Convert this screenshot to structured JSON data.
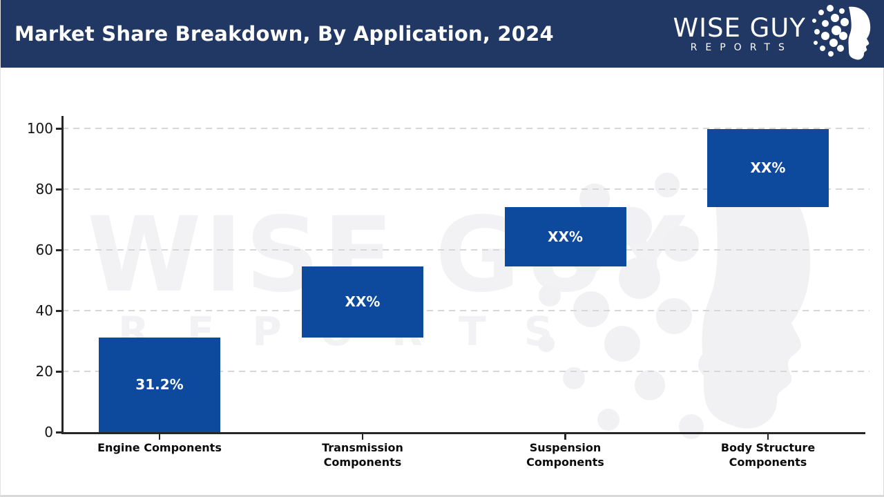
{
  "header": {
    "title": "Market Share Breakdown, By Application, 2024",
    "logo_line1": "WISE GUY",
    "logo_line2": "REPORTS",
    "bg_color": "#213764"
  },
  "watermark": {
    "line1": "WISE GUY",
    "line2": "REPORTS"
  },
  "chart_data": {
    "type": "bar",
    "subtype": "floating-segment (waterfall-style) bars",
    "title": "Market Share Breakdown, By Application, 2024",
    "categories": [
      "Engine Components",
      "Transmission Components",
      "Suspension Components",
      "Body Structure Components"
    ],
    "segments": [
      {
        "category": "Engine Components",
        "start": 0,
        "end": 31.2,
        "label": "31.2%"
      },
      {
        "category": "Transmission Components",
        "start": 31.2,
        "end": 54.5,
        "label": "XX%"
      },
      {
        "category": "Suspension Components",
        "start": 54.5,
        "end": 74.1,
        "label": "XX%"
      },
      {
        "category": "Body Structure Components",
        "start": 74.1,
        "end": 99.8,
        "label": "XX%"
      }
    ],
    "xlabel": "",
    "ylabel": "",
    "ylim": [
      0,
      100
    ],
    "yticks": [
      0,
      20,
      40,
      60,
      80,
      100
    ],
    "grid": "horizontal dashed gridlines at y ticks",
    "legend": "none",
    "bar_color": "#0d4a9d",
    "bar_label_color": "#ffffff",
    "redacted_note": "values for last three bars are masked as XX% in the source image"
  }
}
